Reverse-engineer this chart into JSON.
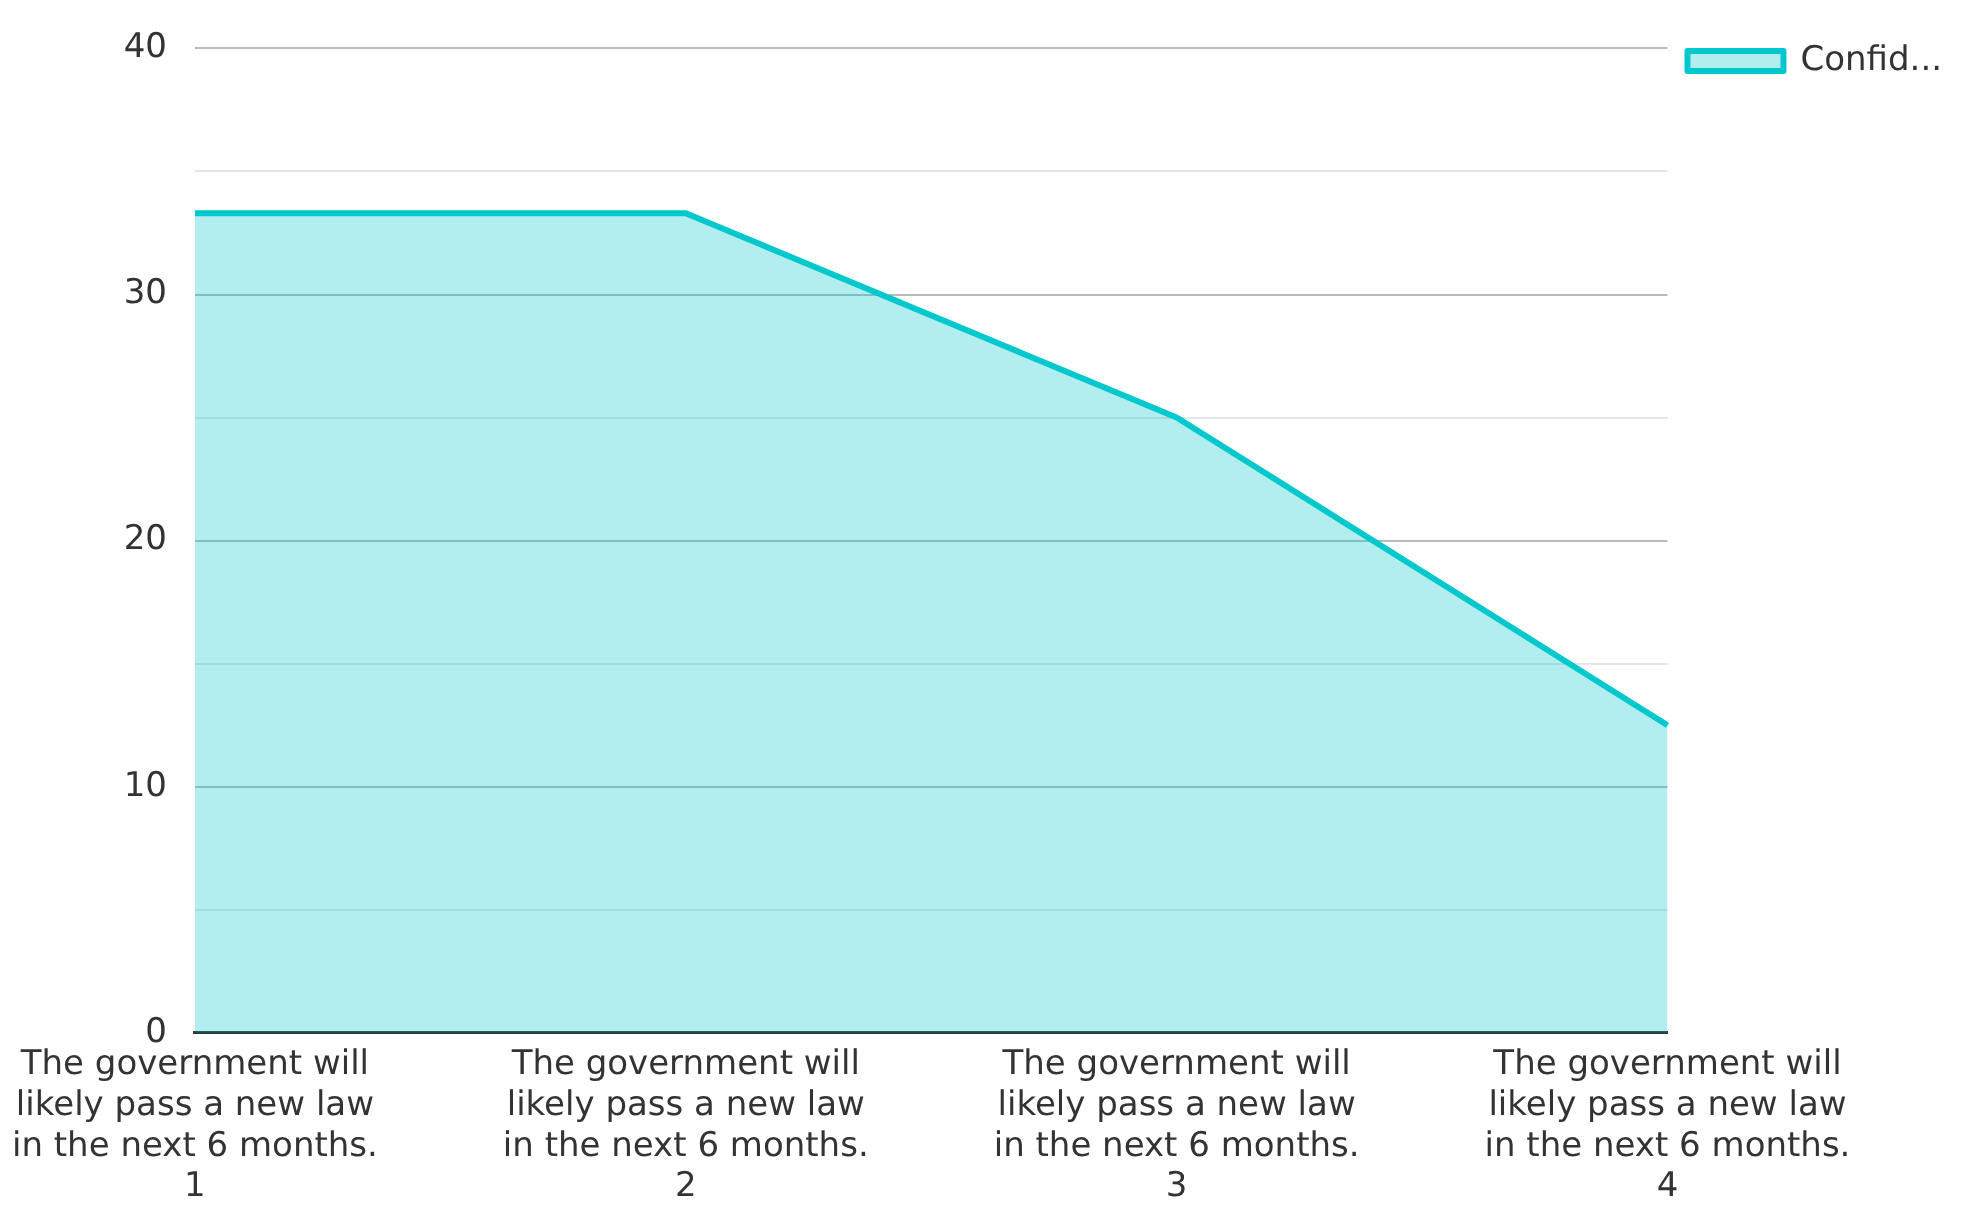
{
  "chart_data": {
    "type": "area",
    "categories": [
      "The government will likely pass a new law in the next 6 months. 1",
      "The government will likely pass a new law in the next 6 months. 2",
      "The government will likely pass a new law in the next 6 months. 3",
      "The government will likely pass a new law in the next 6 months. 4"
    ],
    "series": [
      {
        "name": "Confid...",
        "color": "#00c8cc",
        "values": [
          33.3,
          33.3,
          25,
          12.5
        ]
      }
    ],
    "ylim": [
      0,
      40
    ],
    "yticks": [
      0,
      {
        "value": 5,
        "label": null
      },
      10,
      {
        "value": 15,
        "label": null
      },
      20,
      {
        "value": 25,
        "label": null
      },
      30,
      {
        "value": 35,
        "label": null
      },
      40
    ],
    "grid": "y",
    "legend": "top right",
    "marker": "none",
    "line_style": "solid"
  }
}
